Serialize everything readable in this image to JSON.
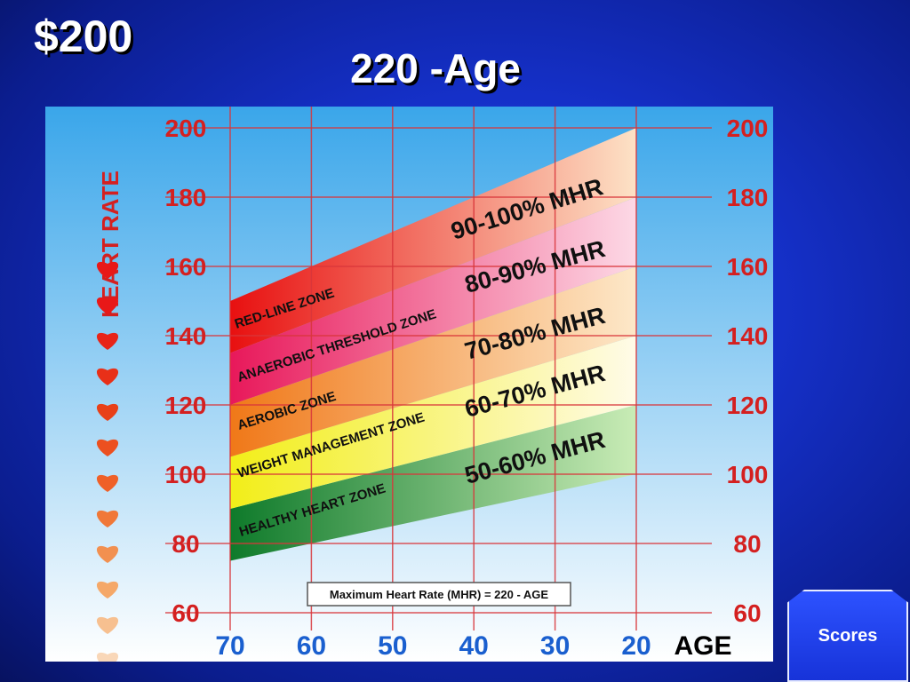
{
  "header": {
    "amount": "$200",
    "title": "220 -Age"
  },
  "scores_button": {
    "label": "Scores"
  },
  "chart_data": {
    "type": "area",
    "title": "",
    "ylabel": "HEART RATE",
    "xlabel": "AGE",
    "x_ticks": [
      70,
      60,
      50,
      40,
      30,
      20
    ],
    "y_ticks": [
      200,
      180,
      160,
      140,
      120,
      100,
      80,
      60
    ],
    "xlim": [
      70,
      20
    ],
    "ylim": [
      60,
      200
    ],
    "grid": true,
    "formula": "Maximum Heart Rate (MHR)  =  220 - AGE",
    "zones": [
      {
        "name": "HEALTHY HEART ZONE",
        "label": "50-60% MHR",
        "low_pct": 0.5,
        "high_pct": 0.6,
        "color_low": "#0e7a2a",
        "color_high": "#c9ecb6"
      },
      {
        "name": "WEIGHT MANAGEMENT ZONE",
        "label": "60-70% MHR",
        "low_pct": 0.6,
        "high_pct": 0.7,
        "color_low": "#f2ee18",
        "color_high": "#fffbe8"
      },
      {
        "name": "AEROBIC ZONE",
        "label": "70-80% MHR",
        "low_pct": 0.7,
        "high_pct": 0.8,
        "color_low": "#f07818",
        "color_high": "#fde8c9"
      },
      {
        "name": "ANAEROBIC THRESHOLD ZONE",
        "label": "80-90% MHR",
        "low_pct": 0.8,
        "high_pct": 0.9,
        "color_low": "#e8185a",
        "color_high": "#fdd9e6"
      },
      {
        "name": "RED-LINE ZONE",
        "label": "90-100% MHR",
        "low_pct": 0.9,
        "high_pct": 1.0,
        "color_low": "#e81010",
        "color_high": "#fde2c6"
      }
    ],
    "colors": {
      "background_top": "#3aa6ea",
      "background_bottom": "#ffffff",
      "grid": "#d9363b",
      "tick_label": "#d42020",
      "age_tick_label": "#1a5fcf"
    }
  }
}
